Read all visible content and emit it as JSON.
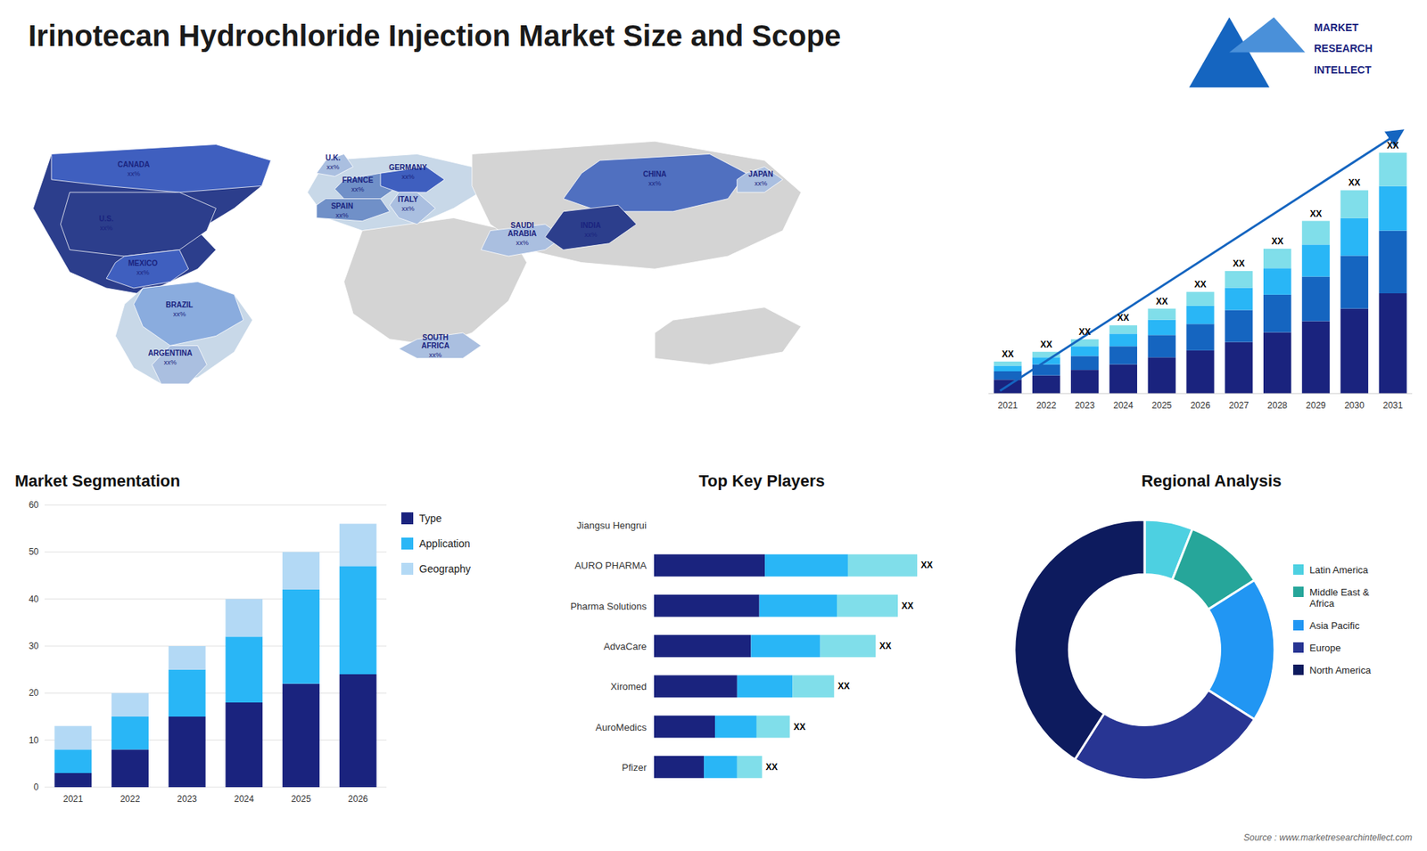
{
  "title": "Irinotecan Hydrochloride Injection Market Size and Scope",
  "annotations": [
    "Source : www.marketresearchintellect.com",
    "MARKET",
    "RESEARCH",
    "INTELLECT"
  ],
  "chart_data": [
    {
      "type": "map",
      "categories": [
        "CANADA",
        "U.S.",
        "MEXICO",
        "BRAZIL",
        "ARGENTINA",
        "U.K.",
        "FRANCE",
        "SPAIN",
        "GERMANY",
        "ITALY",
        "SAUDI\nARABIA",
        "SOUTH\nAFRICA",
        "CHINA",
        "JAPAN",
        "INDIA"
      ],
      "annotations": [
        "xx%",
        "xx%",
        "xx%",
        "xx%",
        "xx%",
        "xx%",
        "xx%",
        "xx%",
        "xx%",
        "xx%",
        "xx%",
        "xx%",
        "xx%",
        "xx%",
        "xx%"
      ]
    },
    {
      "type": "bar",
      "stacked": true,
      "categories": [
        "2021",
        "2022",
        "2023",
        "2024",
        "2025",
        "2026",
        "2027",
        "2028",
        "2029",
        "2030",
        "2031"
      ],
      "series": [
        {
          "color": "#1a237e",
          "values": [
            1.0,
            1.3,
            1.7,
            2.1,
            2.6,
            3.1,
            3.7,
            4.4,
            5.2,
            6.1,
            7.2
          ]
        },
        {
          "color": "#1565c0",
          "values": [
            0.6,
            0.8,
            1.0,
            1.3,
            1.6,
            1.9,
            2.3,
            2.7,
            3.2,
            3.8,
            4.5
          ]
        },
        {
          "color": "#29b6f6",
          "values": [
            0.4,
            0.5,
            0.7,
            0.9,
            1.1,
            1.3,
            1.6,
            1.9,
            2.3,
            2.7,
            3.2
          ]
        },
        {
          "color": "#80deea",
          "values": [
            0.3,
            0.4,
            0.5,
            0.6,
            0.8,
            1.0,
            1.2,
            1.4,
            1.7,
            2.0,
            2.4
          ]
        }
      ],
      "annotations": [
        "XX",
        "XX",
        "XX",
        "XX",
        "XX",
        "XX",
        "XX",
        "XX",
        "XX",
        "XX",
        "XX"
      ],
      "color": "#1565c0",
      "ylim": [
        0,
        20.8
      ],
      "tick_labels": "x"
    },
    {
      "type": "bar",
      "stacked": true,
      "title": "Market Segmentation",
      "categories": [
        "2021",
        "2022",
        "2023",
        "2024",
        "2025",
        "2026"
      ],
      "series": [
        {
          "name": "Type",
          "color": "#1a237e",
          "values": [
            3,
            8,
            15,
            18,
            22,
            24
          ]
        },
        {
          "name": "Application",
          "color": "#29b6f6",
          "values": [
            5,
            7,
            10,
            14,
            20,
            23
          ]
        },
        {
          "name": "Geography",
          "color": "#b3d9f5",
          "values": [
            5,
            5,
            5,
            8,
            8,
            9
          ]
        }
      ],
      "ylim": [
        0,
        60
      ],
      "yticks": [
        0,
        10,
        20,
        30,
        40,
        50,
        60
      ],
      "grid": true,
      "legend": "right"
    },
    {
      "type": "bar",
      "stacked": true,
      "orientation": "horizontal",
      "title": "Top Key Players",
      "categories": [
        "Jiangsu Hengrui",
        "AURO PHARMA",
        "Pharma Solutions",
        "AdvaCare",
        "Xiromed",
        "AuroMedics",
        "Pfizer"
      ],
      "series": [
        {
          "color": "#1a237e",
          "values": [
            0,
            4.0,
            3.8,
            3.5,
            3.0,
            2.2,
            1.8
          ]
        },
        {
          "color": "#29b6f6",
          "values": [
            0,
            3.0,
            2.8,
            2.5,
            2.0,
            1.5,
            1.2
          ]
        },
        {
          "color": "#80deea",
          "values": [
            0,
            2.5,
            2.2,
            2.0,
            1.5,
            1.2,
            0.9
          ]
        }
      ],
      "annotations": [
        null,
        "XX",
        "XX",
        "XX",
        "XX",
        "XX",
        "XX"
      ],
      "xlim": [
        0,
        11
      ],
      "tick_labels": "y"
    },
    {
      "type": "donut",
      "title": "Regional Analysis",
      "categories": [
        "Latin America",
        "Middle East &\nAfrica",
        "Asia Pacific",
        "Europe",
        "North America"
      ],
      "values": [
        6,
        10,
        18,
        25,
        41
      ],
      "colors": [
        "#4dd0e1",
        "#26a69a",
        "#2196f3",
        "#283593",
        "#0d1b5e"
      ],
      "legend": "right"
    }
  ]
}
